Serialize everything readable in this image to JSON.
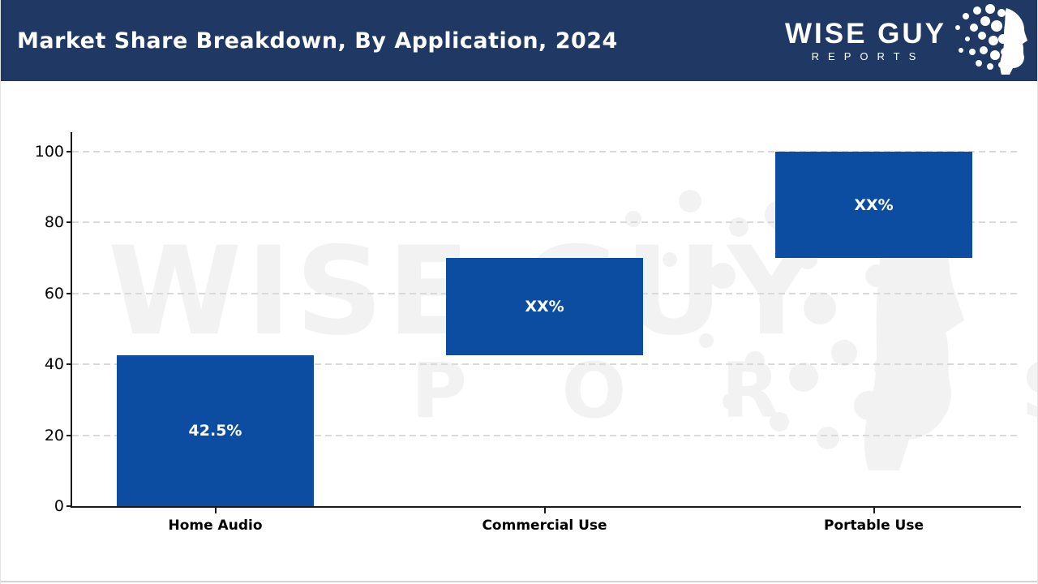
{
  "header": {
    "title": "Market Share Breakdown, By Application, 2024",
    "logo": {
      "line1": "WISE GUY",
      "line2": "REPORTS"
    }
  },
  "watermark": {
    "line1": "WISE GUY",
    "line2": "R E P O R T S"
  },
  "chart_data": {
    "type": "bar",
    "subtype": "waterfall-stacked",
    "title": "Market Share Breakdown, By Application, 2024",
    "categories": [
      "Home Audio",
      "Commercial Use",
      "Portable Use"
    ],
    "segments": [
      {
        "category": "Home Audio",
        "start": 0,
        "end": 42.5,
        "label": "42.5%"
      },
      {
        "category": "Commercial Use",
        "start": 42.5,
        "end": 70,
        "label": "XX%"
      },
      {
        "category": "Portable Use",
        "start": 70,
        "end": 100,
        "label": "XX%"
      }
    ],
    "yticks": [
      0,
      20,
      40,
      60,
      80,
      100
    ],
    "ylim": [
      0,
      105
    ],
    "xlabel": "",
    "ylabel": "",
    "legend": null,
    "grid": "horizontal-dashed",
    "colors": {
      "bar": "#0C4DA2",
      "bar_label": "#FFFFFF",
      "grid": "#D9D9D9",
      "axis": "#1A1A1A",
      "header_bg": "#1F3864",
      "watermark": "#F2F2F3"
    }
  }
}
